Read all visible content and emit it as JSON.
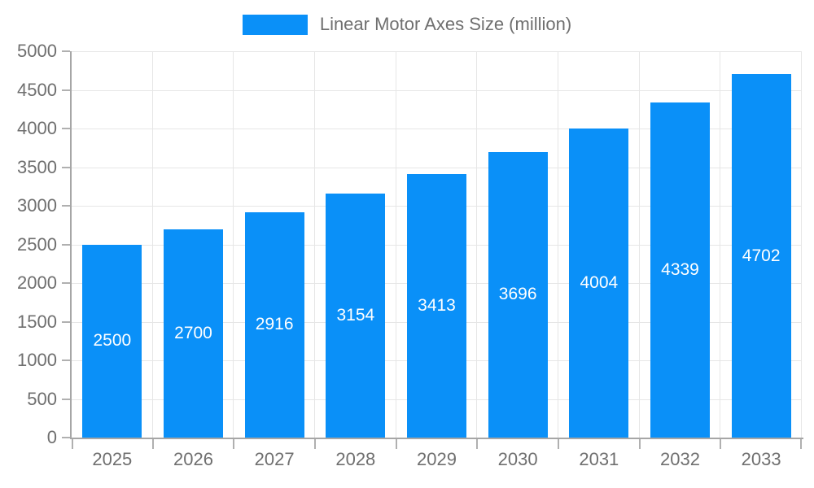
{
  "chart_data": {
    "type": "bar",
    "title": "Linear Motor Axes Size (million)",
    "categories": [
      "2025",
      "2026",
      "2027",
      "2028",
      "2029",
      "2030",
      "2031",
      "2032",
      "2033"
    ],
    "values": [
      2500,
      2700,
      2916,
      3154,
      3413,
      3696,
      4004,
      4339,
      4702
    ],
    "xlabel": "",
    "ylabel": "",
    "ylim": [
      0,
      5000
    ],
    "ytick_step": 500,
    "grid": true,
    "legend_position": "top",
    "value_labels": "inside-center",
    "colors": {
      "bar": "#0A90F8",
      "value_label": "#FFFFFF",
      "grid": "#E6E6E6",
      "axis_line": "#A6A6A6",
      "tick": "#B0B0B0",
      "axis_text": "#6F6F6F",
      "background": "#FFFFFF"
    }
  }
}
